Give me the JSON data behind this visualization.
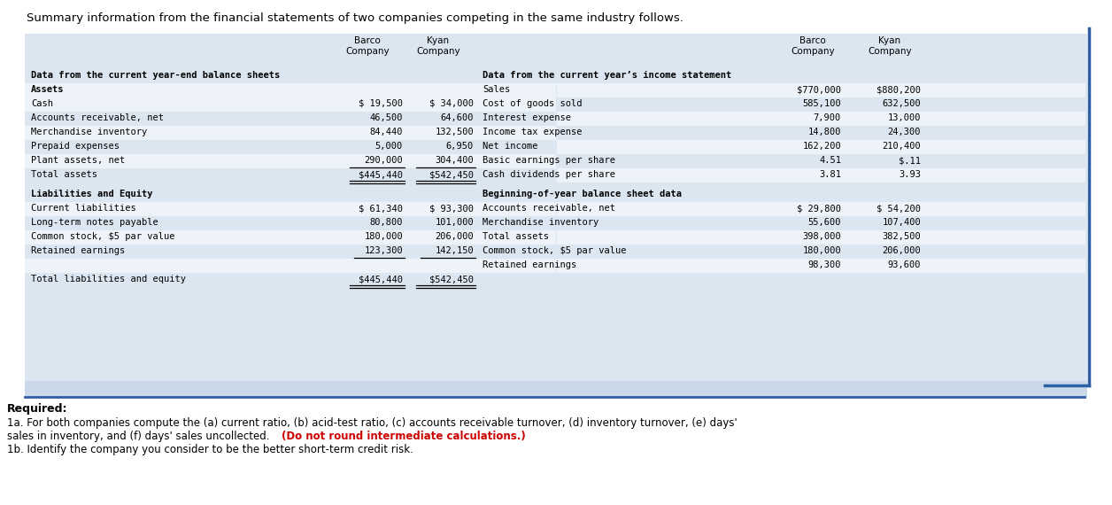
{
  "title": "Summary information from the financial statements of two companies competing in the same industry follows.",
  "bg_color": "#ffffff",
  "table_bg_light": "#dce6f1",
  "table_bg_white": "#eef3f9",
  "border_color": "#2e5fa3",
  "req_bold_color": "#cc0000",
  "figw": 12.56,
  "figh": 5.7,
  "dpi": 100
}
